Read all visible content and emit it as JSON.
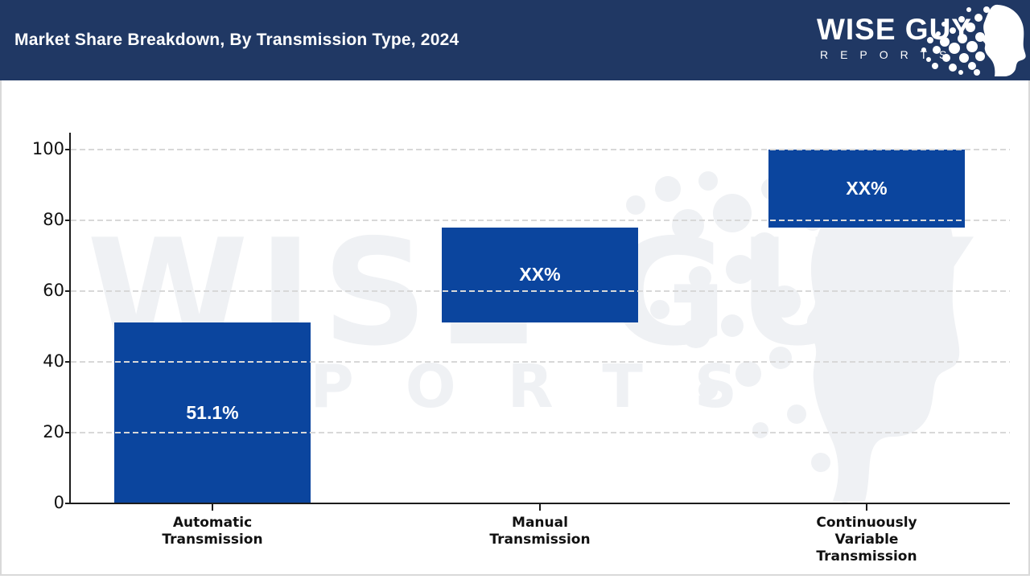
{
  "header": {
    "title": "Market Share Breakdown, By Transmission Type, 2024",
    "logo": {
      "name": "WISE GUY",
      "subname": "REPORTS"
    }
  },
  "watermark": {
    "line1": "WISE GUY",
    "line2": "REPORTS"
  },
  "chart_data": {
    "type": "bar",
    "subtype": "waterfall",
    "title": "Market Share Breakdown, By Transmission Type, 2024",
    "categories": [
      "Automatic Transmission",
      "Manual Transmission",
      "Continuously Variable Transmission"
    ],
    "category_lines": [
      [
        "Automatic",
        "Transmission"
      ],
      [
        "Manual",
        "Transmission"
      ],
      [
        "Continuously",
        "Variable",
        "Transmission"
      ]
    ],
    "segments": [
      {
        "category": "Automatic Transmission",
        "start": 0,
        "end": 51.1,
        "label": "51.1%"
      },
      {
        "category": "Manual Transmission",
        "start": 51.1,
        "end": 78,
        "label": "XX%"
      },
      {
        "category": "Continuously Variable Transmission",
        "start": 78,
        "end": 100,
        "label": "XX%"
      }
    ],
    "ylim": [
      0,
      100
    ],
    "yticks": [
      0,
      20,
      40,
      60,
      80,
      100
    ],
    "grid": "horizontal-dashed",
    "legend": "none",
    "bar_color": "#0b459e",
    "value_label_color": "#ffffff"
  },
  "colors": {
    "header_bg": "#203864",
    "bar": "#0b459e",
    "grid": "#d8d8d8",
    "axis": "#1c1c1c",
    "panel_border": "#d9d9d9",
    "watermark": "#eff1f4"
  }
}
